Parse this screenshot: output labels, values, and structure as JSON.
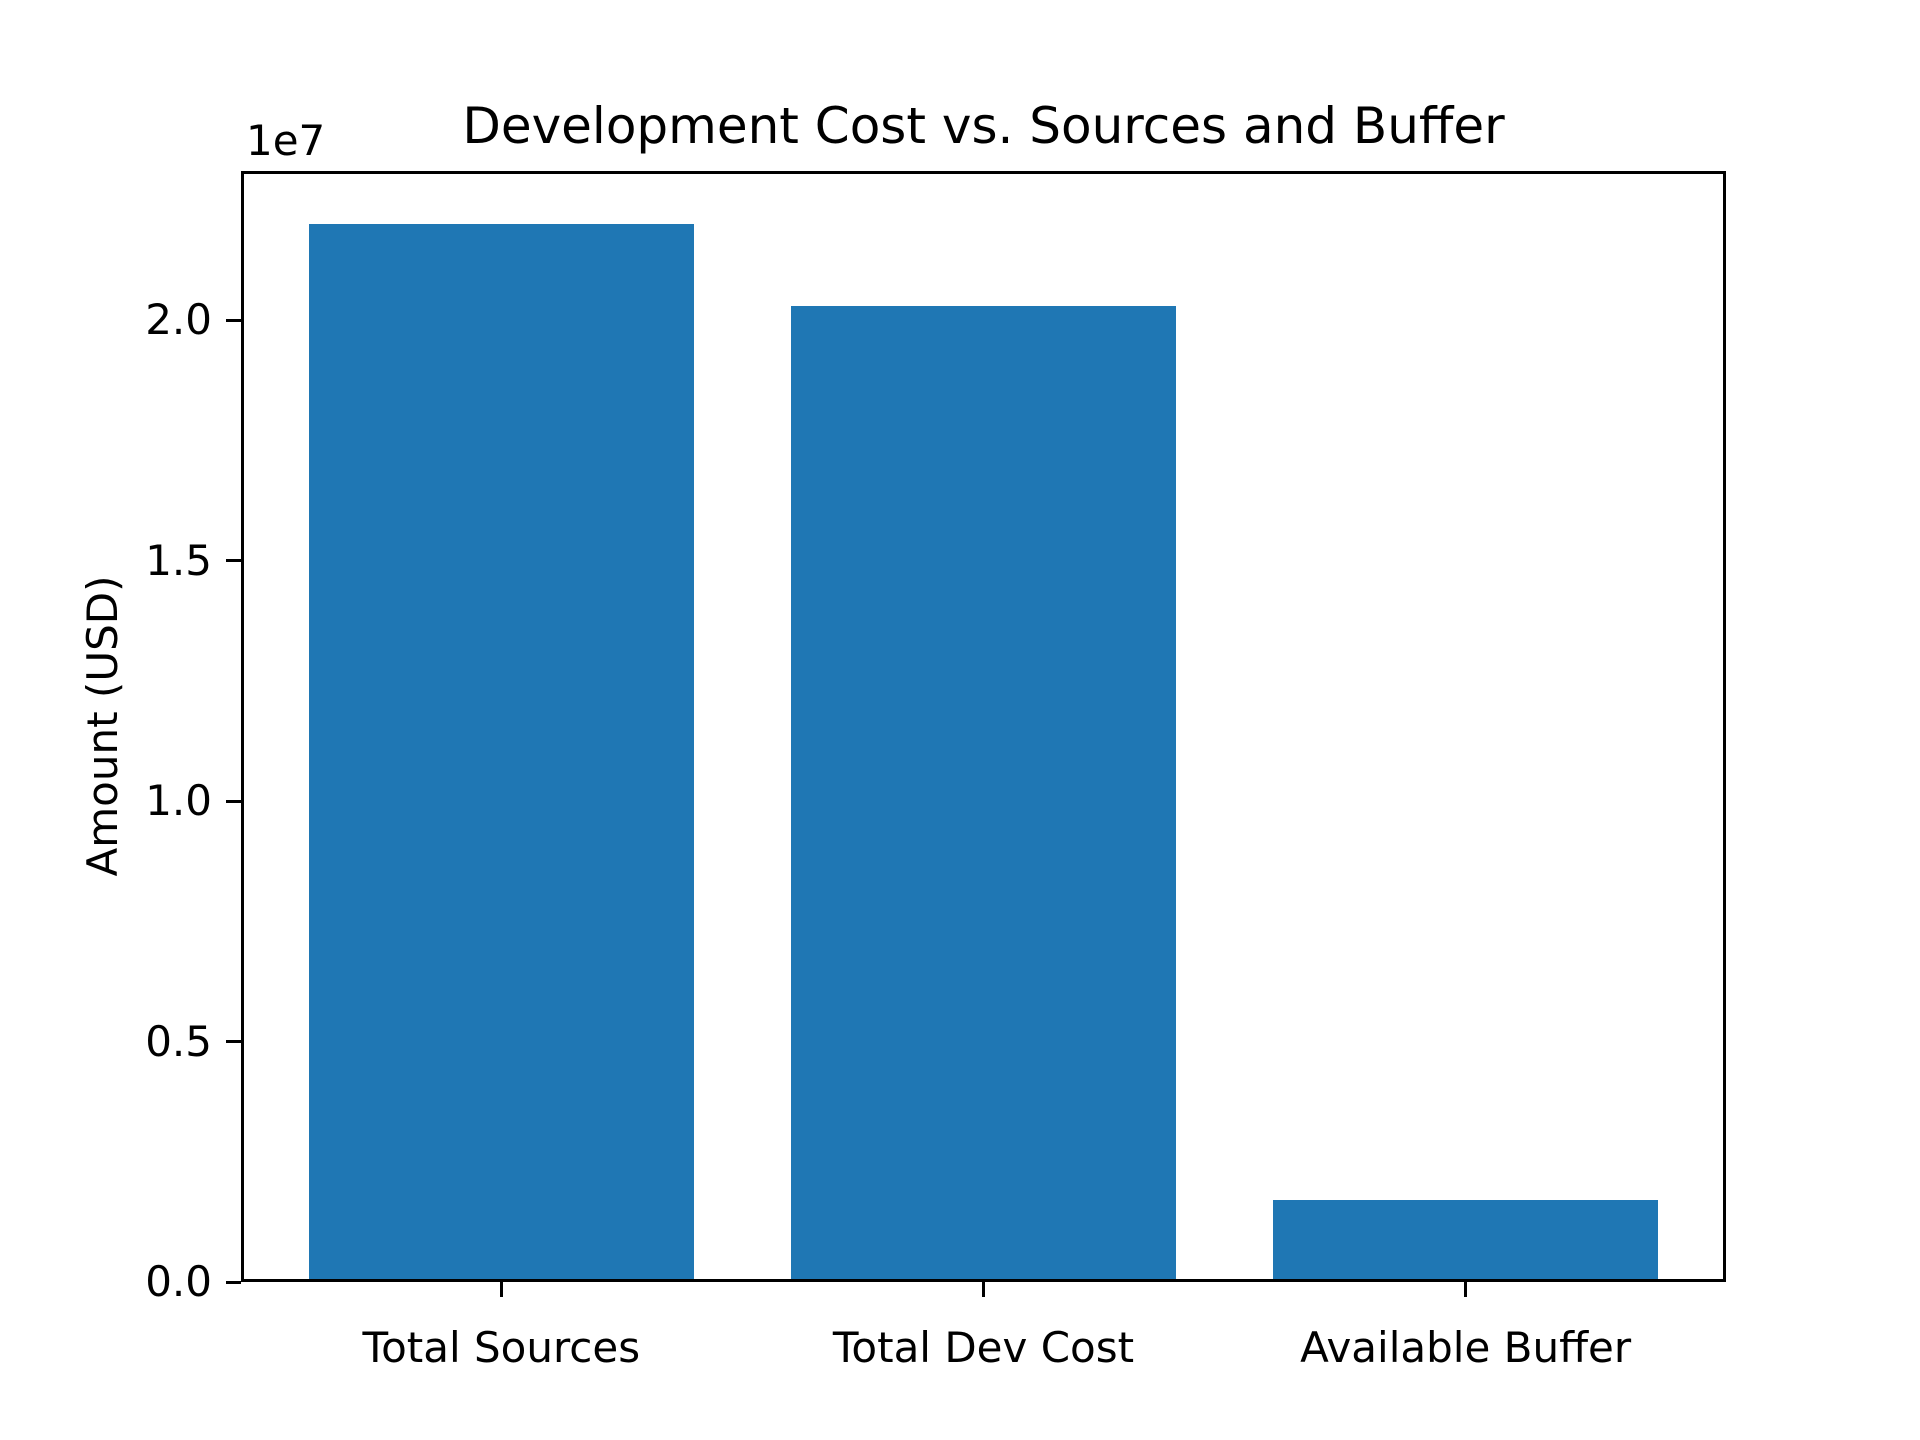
{
  "chart_data": {
    "type": "bar",
    "title": "Development Cost vs. Sources and Buffer",
    "categories": [
      "Total Sources",
      "Total Dev Cost",
      "Available Buffer"
    ],
    "values": [
      22000000,
      20300000,
      1700000
    ],
    "xlabel": "",
    "ylabel": "Amount (USD)",
    "y_offset_label": "1e7",
    "ylim": [
      0,
      23100000
    ],
    "yticks": [
      {
        "value": 0,
        "label": "0.0"
      },
      {
        "value": 5000000,
        "label": "0.5"
      },
      {
        "value": 10000000,
        "label": "1.0"
      },
      {
        "value": 15000000,
        "label": "1.5"
      },
      {
        "value": 20000000,
        "label": "2.0"
      }
    ],
    "bar_color": "#1f77b4",
    "bar_width_frac": 0.8,
    "x_margin": 0.05,
    "grid": false,
    "legend_position": "none"
  }
}
